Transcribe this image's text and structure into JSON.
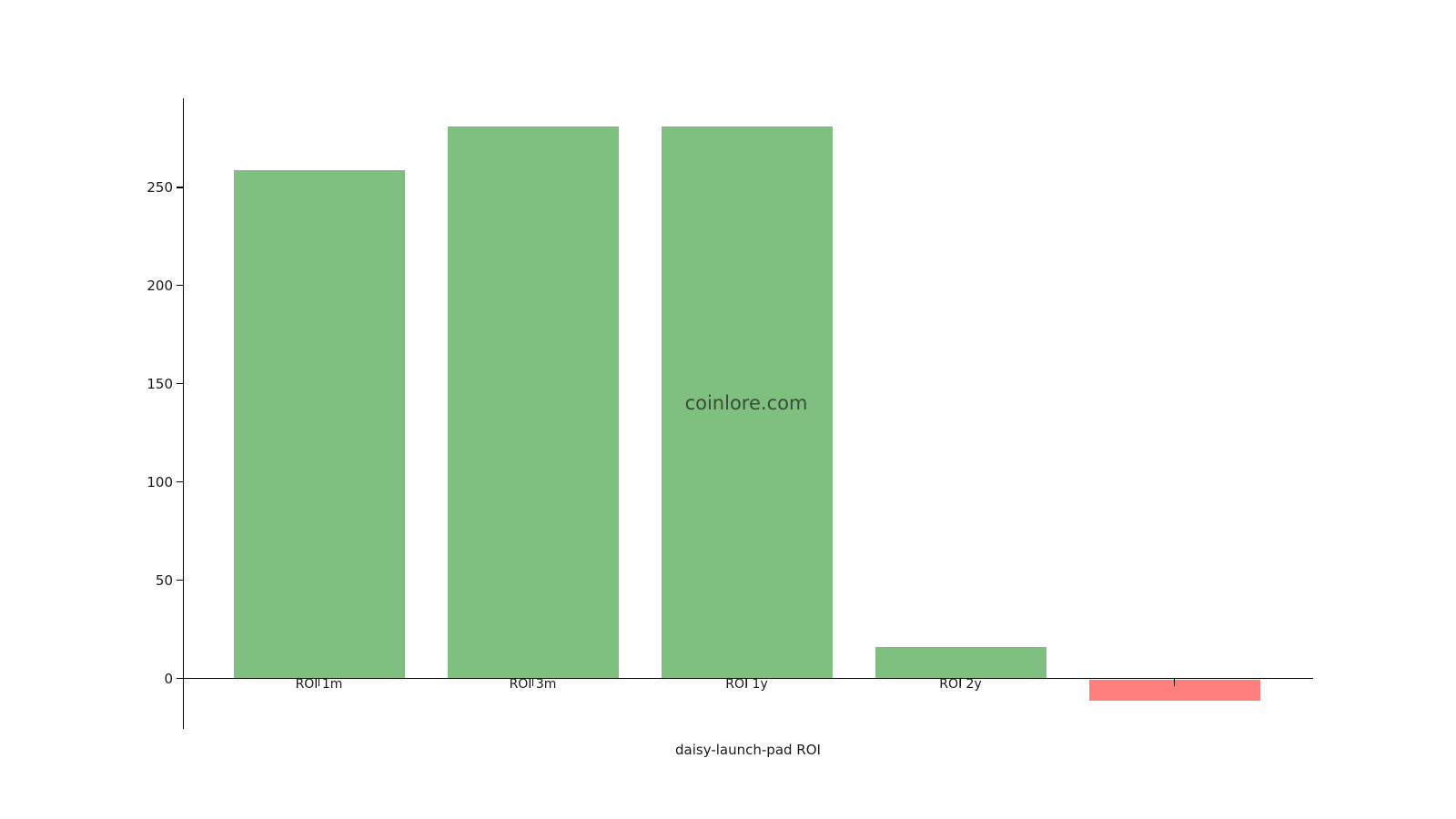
{
  "chart_data": {
    "type": "bar",
    "title": "daisy-launch-pad ROI",
    "watermark": "coinlore.com",
    "categories": [
      "ROI 1m",
      "ROI 3m",
      "ROI 1y",
      "ROI 2y",
      ""
    ],
    "values": [
      259,
      281,
      281,
      16,
      -11
    ],
    "bar_colors": [
      "#7fbf7f",
      "#7fbf7f",
      "#7fbf7f",
      "#7fbf7f",
      "#ff7f7f"
    ],
    "positive_color": "#7fbf7f",
    "negative_color": "#ff7f7f",
    "yticks": [
      0,
      50,
      100,
      150,
      200,
      250
    ],
    "ylim": [
      -25,
      295
    ],
    "xlabel": "",
    "ylabel": "",
    "grid": false,
    "legend_position": "none",
    "axis_color": "#000000",
    "text_color": "#1a1a1a"
  }
}
